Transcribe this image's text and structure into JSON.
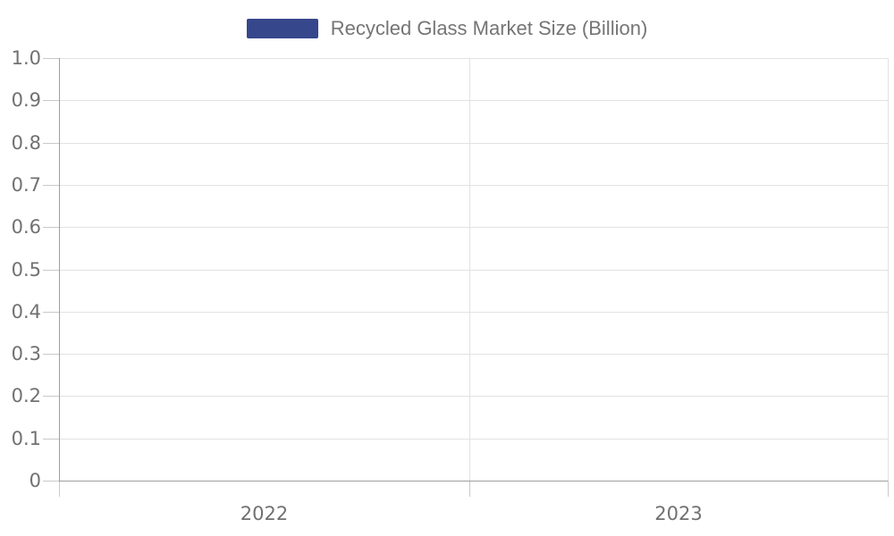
{
  "legend": {
    "label": "Recycled Glass Market Size (Billion)"
  },
  "chart_data": {
    "type": "bar",
    "title": "Recycled Glass Market Size (Billion)",
    "categories": [
      "2022",
      "2023"
    ],
    "series": [
      {
        "name": "Recycled Glass Market Size (Billion)",
        "color": "#36478B",
        "values": [
          null,
          null
        ]
      }
    ],
    "xlabel": "",
    "ylabel": "",
    "ylim": [
      0,
      1
    ],
    "y_tick_labels": [
      "1.0",
      "0.9",
      "0.8",
      "0.7",
      "0.6",
      "0.5",
      "0.4",
      "0.3",
      "0.2",
      "0.1",
      "0"
    ],
    "grid": true,
    "legend_position": "top-center"
  },
  "colors": {
    "background": "#ffffff",
    "swatch": "#36478B",
    "legend_text": "#757575",
    "axis_label": "#717171",
    "axis_line": "#9e9e9e",
    "tick_line": "#c9c9c9",
    "grid_line": "#e2e2e2"
  }
}
